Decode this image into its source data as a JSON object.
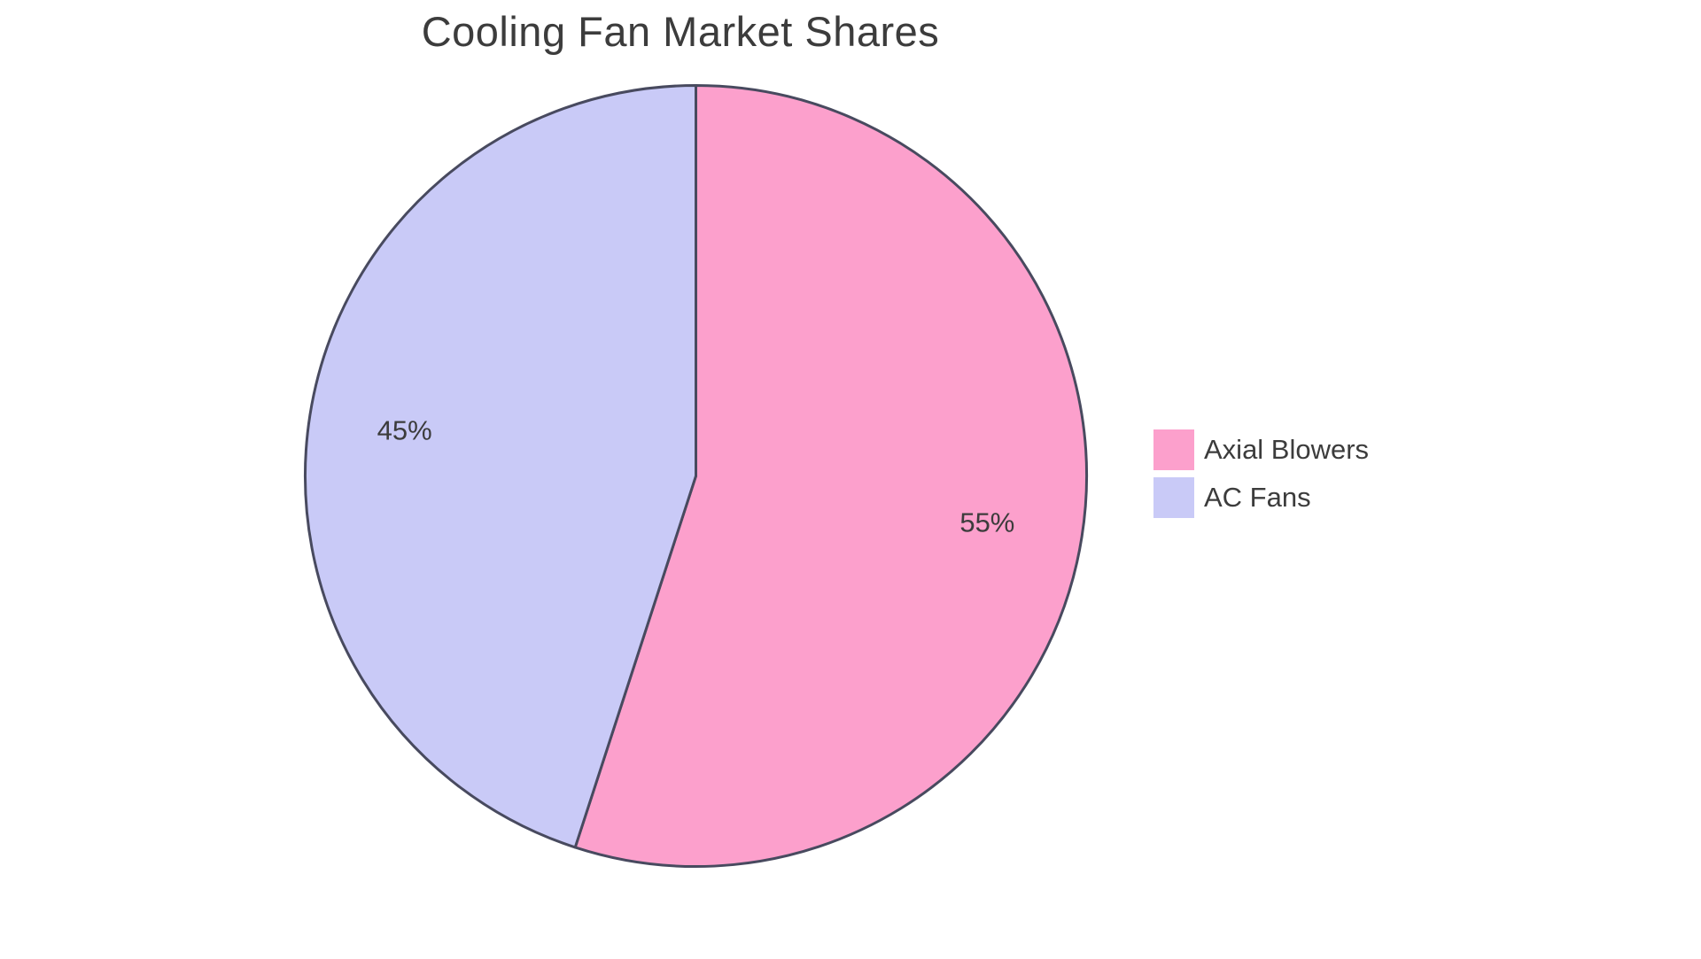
{
  "chart_data": {
    "type": "pie",
    "title": "Cooling Fan Market Shares",
    "slices": [
      {
        "label": "Axial Blowers",
        "value": 55,
        "display_label": "55%",
        "color": "#FCA0CC"
      },
      {
        "label": "AC Fans",
        "value": 45,
        "display_label": "45%",
        "color": "#C9CAF7"
      }
    ],
    "start_angle_deg": 0,
    "direction": "clockwise",
    "legend_position": "right",
    "slice_border_color": "#484A5F",
    "slice_border_width": 3,
    "label_color": "#3C3C3C",
    "label_radius_ratio": 0.755,
    "background_color": "#FFFFFF"
  }
}
